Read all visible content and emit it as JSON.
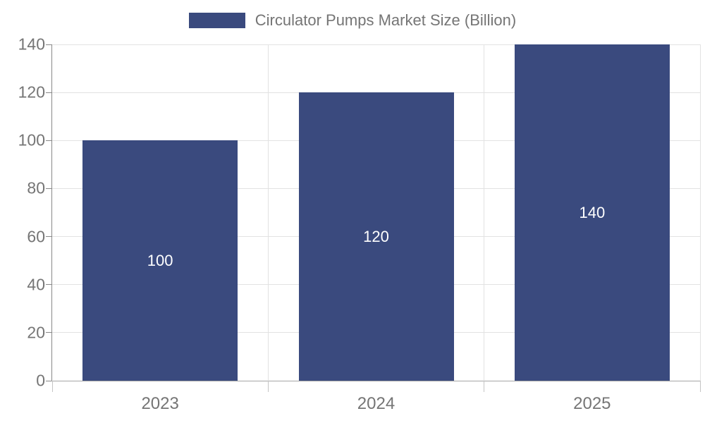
{
  "legend": {
    "label": "Circulator Pumps Market Size (Billion)"
  },
  "chart_data": {
    "type": "bar",
    "title": "Circulator Pumps Market Size (Billion)",
    "categories": [
      "2023",
      "2024",
      "2025"
    ],
    "values": [
      100,
      120,
      140
    ],
    "value_labels": [
      "100",
      "120",
      "140"
    ],
    "xlabel": "",
    "ylabel": "",
    "ylim": [
      0,
      140
    ],
    "yticks": [
      0,
      20,
      40,
      60,
      80,
      100,
      120,
      140
    ],
    "grid": true,
    "legend_position": "top-center",
    "bar_color": "#3a4a7e",
    "value_label_color": "#ffffff",
    "axis_text_color": "#757575"
  }
}
